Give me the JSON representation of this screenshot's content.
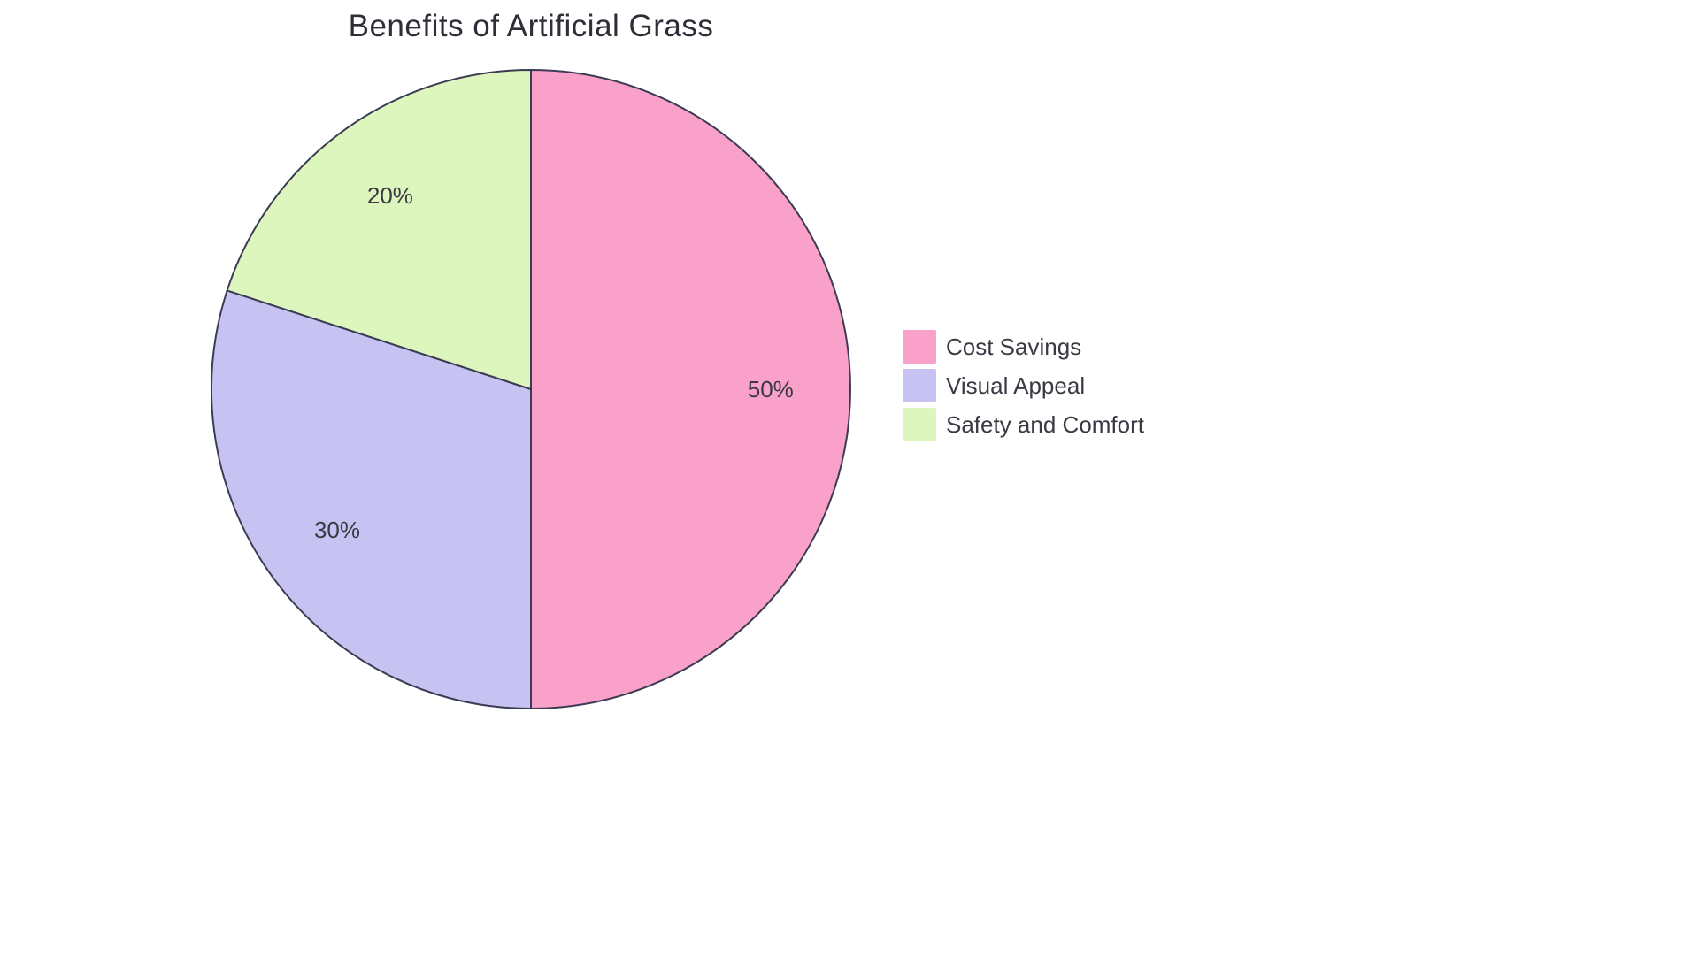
{
  "title": "Benefits of Artificial Grass",
  "chart_data": {
    "type": "pie",
    "title": "Benefits of Artificial Grass",
    "labels": [
      "Cost Savings",
      "Visual Appeal",
      "Safety and Comfort"
    ],
    "values": [
      50,
      30,
      20
    ],
    "value_labels": [
      "50%",
      "30%",
      "20%"
    ],
    "colors": [
      "#f9a1c9",
      "#c6c3f2",
      "#ddf6be"
    ],
    "stroke_color": "#3b3b54",
    "stroke_width": 2,
    "label_color": "#3a3a44",
    "legend_position": "right",
    "start_angle_deg": 0,
    "direction": "clockwise",
    "background": "#ffffff"
  }
}
